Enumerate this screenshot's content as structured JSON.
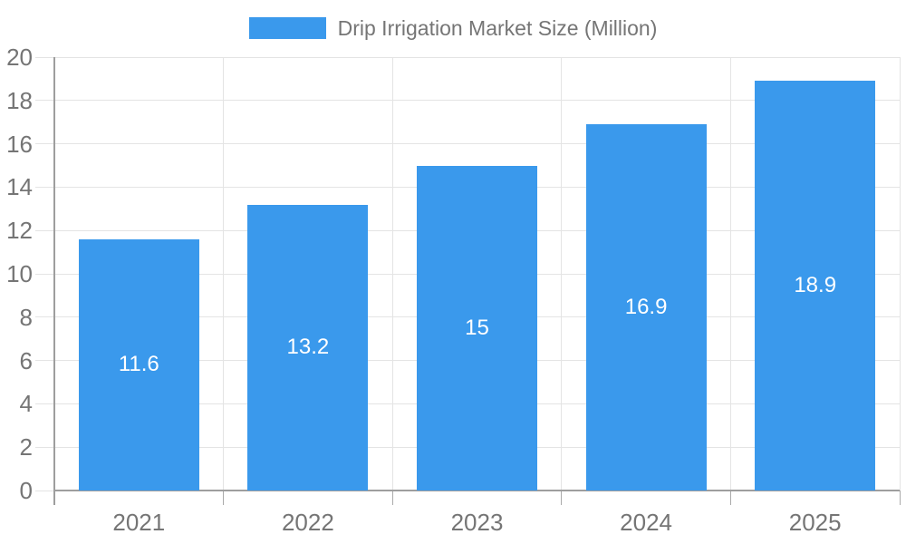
{
  "chart_data": {
    "type": "bar",
    "title": "Drip Irrigation Market Size (Million)",
    "categories": [
      "2021",
      "2022",
      "2023",
      "2024",
      "2025"
    ],
    "values": [
      11.6,
      13.2,
      15,
      16.9,
      18.9
    ],
    "value_labels": [
      "11.6",
      "13.2",
      "15",
      "16.9",
      "18.9"
    ],
    "xlabel": "",
    "ylabel": "",
    "ylim": [
      0,
      20
    ],
    "yticks": [
      0,
      2,
      4,
      6,
      8,
      10,
      12,
      14,
      16,
      18,
      20
    ],
    "grid": true,
    "legend_position": "top",
    "value_label_position": "inside-center"
  },
  "colors": {
    "bar": "#3a99ec",
    "axis": "#9e9e9e",
    "tick": "#aaaaaa",
    "grid": "#e4e4e4",
    "tick_text": "#757575",
    "bar_label_text": "#ffffff",
    "background": "#ffffff"
  }
}
